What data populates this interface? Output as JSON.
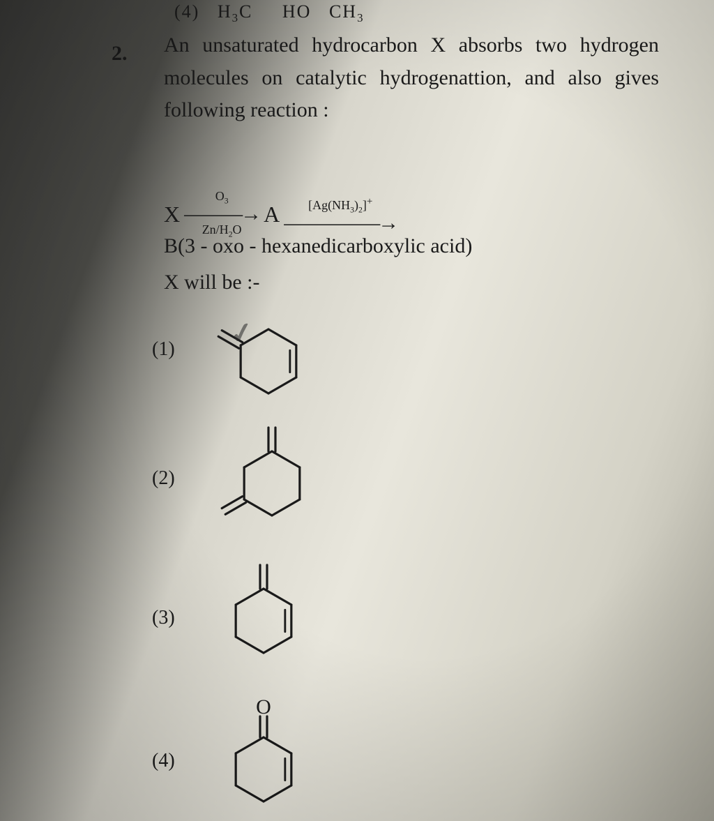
{
  "header_fragment_html": "(4)&nbsp;&nbsp;&nbsp;H<sub>3</sub>C&nbsp;&nbsp;&nbsp;&nbsp;&nbsp;HO&nbsp;&nbsp;&nbsp;CH<sub>3</sub>",
  "question_number": "2.",
  "question_text": "An unsaturated hydrocarbon X absorbs two hydrogen molecules on catalytic hydrogenattion, and also gives following reaction :",
  "reaction": {
    "X": "X",
    "arrow1_top": "O<sub>3</sub>",
    "arrow1_bot": "Zn/H<sub>2</sub>O",
    "A": "A",
    "arrow2_top": "[Ag(NH<sub>3</sub>)<sub>2</sub>]<sup>+</sup>",
    "arrow2_bot": ""
  },
  "product_B": "B(3 - oxo - hexanedicarboxylic acid)",
  "x_will_be": "X will be :-",
  "options": {
    "o1": "(1)",
    "o2": "(2)",
    "o3": "(3)",
    "o4": "(4)"
  },
  "structures": {
    "stroke": "#1a1a1a",
    "stroke_width": 3.2,
    "hex_size": 46,
    "s1": {
      "type": "cyclohexene-methylene",
      "desc": "3-methylenecyclohex-1-ene",
      "ring_double": [
        [
          2,
          3
        ]
      ],
      "exo": {
        "at": 1,
        "double": true
      }
    },
    "s2": {
      "type": "cyclohexane-bis-methylene",
      "desc": "1,3-bis(methylene)cyclohexane",
      "ring_double": [],
      "exo": [
        {
          "at": 1,
          "double": true
        },
        {
          "at": 5,
          "double": true
        }
      ]
    },
    "s3": {
      "type": "cyclohexene-methylene-alt",
      "desc": "3-methylenecyclohex-1-ene (alt)",
      "ring_double": [
        [
          2,
          3
        ]
      ],
      "exo": {
        "at": 1,
        "double": true
      }
    },
    "s4": {
      "type": "cyclohexenone",
      "desc": "cyclohex-2-en-1-one",
      "ring_double": [
        [
          2,
          3
        ]
      ],
      "keto": {
        "at": 1
      }
    }
  }
}
